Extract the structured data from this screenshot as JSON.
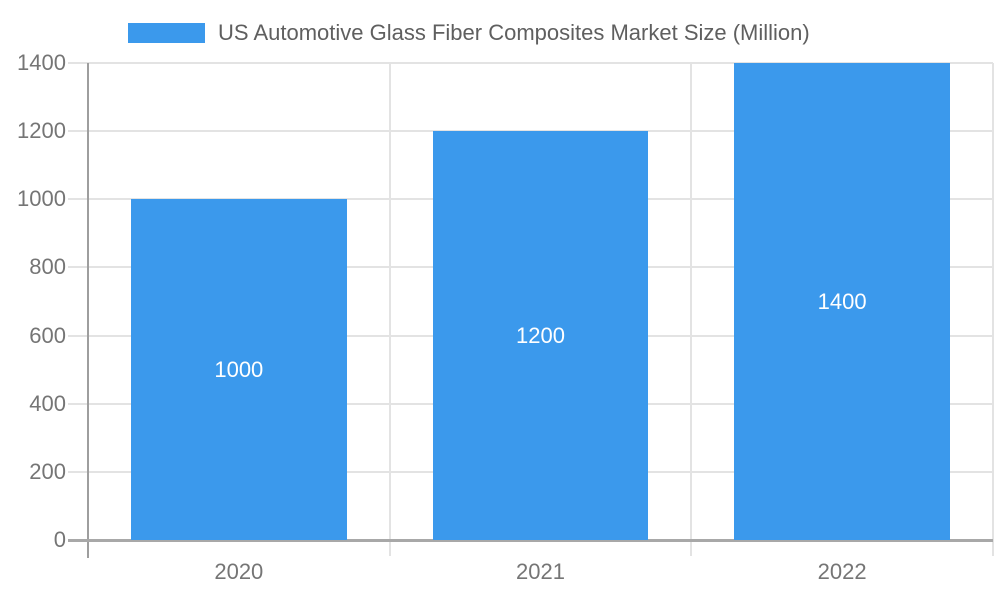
{
  "legend": {
    "label": "US Automotive Glass Fiber Composites Market Size (Million)",
    "swatch_color": "#3b99ec"
  },
  "chart_data": {
    "type": "bar",
    "title": "US Automotive Glass Fiber Composites Market Size (Million)",
    "categories": [
      "2020",
      "2021",
      "2022"
    ],
    "values": [
      1000,
      1200,
      1400
    ],
    "xlabel": "",
    "ylabel": "",
    "ylim": [
      0,
      1400
    ],
    "yticks": [
      0,
      200,
      400,
      600,
      800,
      1000,
      1200,
      1400
    ],
    "grid": true,
    "legend_position": "top",
    "bar_color": "#3b99ec",
    "data_label_color": "#ffffff",
    "axis_label_color": "#757575",
    "gridline_color": "#e3e3e3"
  }
}
